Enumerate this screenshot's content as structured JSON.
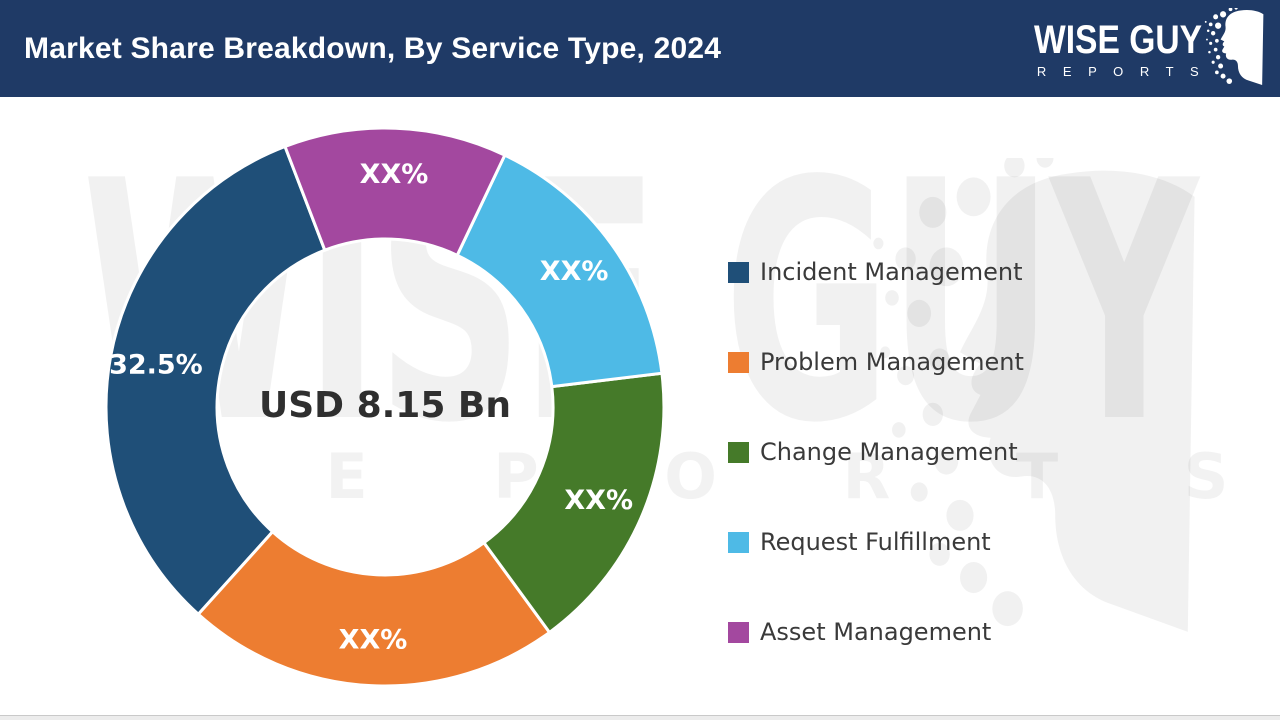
{
  "page": {
    "background": "#ffffff"
  },
  "header": {
    "title": "Market Share Breakdown, By Service Type, 2024",
    "bg_color": "#1f3a66",
    "logo_line1": "WISE GUY",
    "logo_line2": "R E P O R T S"
  },
  "watermark": {
    "line1": "WISE GUY",
    "line2": "R E P O R T S"
  },
  "chart_data": {
    "type": "pie",
    "subtype": "donut",
    "title": "Market Share Breakdown, By Service Type, 2024",
    "center_label": "USD 8.15 Bn",
    "start_angle_deg": 111,
    "direction": "counterclockwise",
    "legend_position": "right",
    "series": [
      {
        "label": "Incident Management",
        "value_label": "32.5%",
        "percent": 32.5,
        "color": "#1f4f78"
      },
      {
        "label": "Problem Management",
        "value_label": "XX%",
        "percent": 21.7,
        "color": "#ed7d31"
      },
      {
        "label": "Change Management",
        "value_label": "XX%",
        "percent": 16.9,
        "color": "#457a29"
      },
      {
        "label": "Request Fulfillment",
        "value_label": "XX%",
        "percent": 16.0,
        "color": "#4ebae6"
      },
      {
        "label": "Asset Management",
        "value_label": "XX%",
        "percent": 12.9,
        "color": "#a3489f"
      }
    ]
  }
}
